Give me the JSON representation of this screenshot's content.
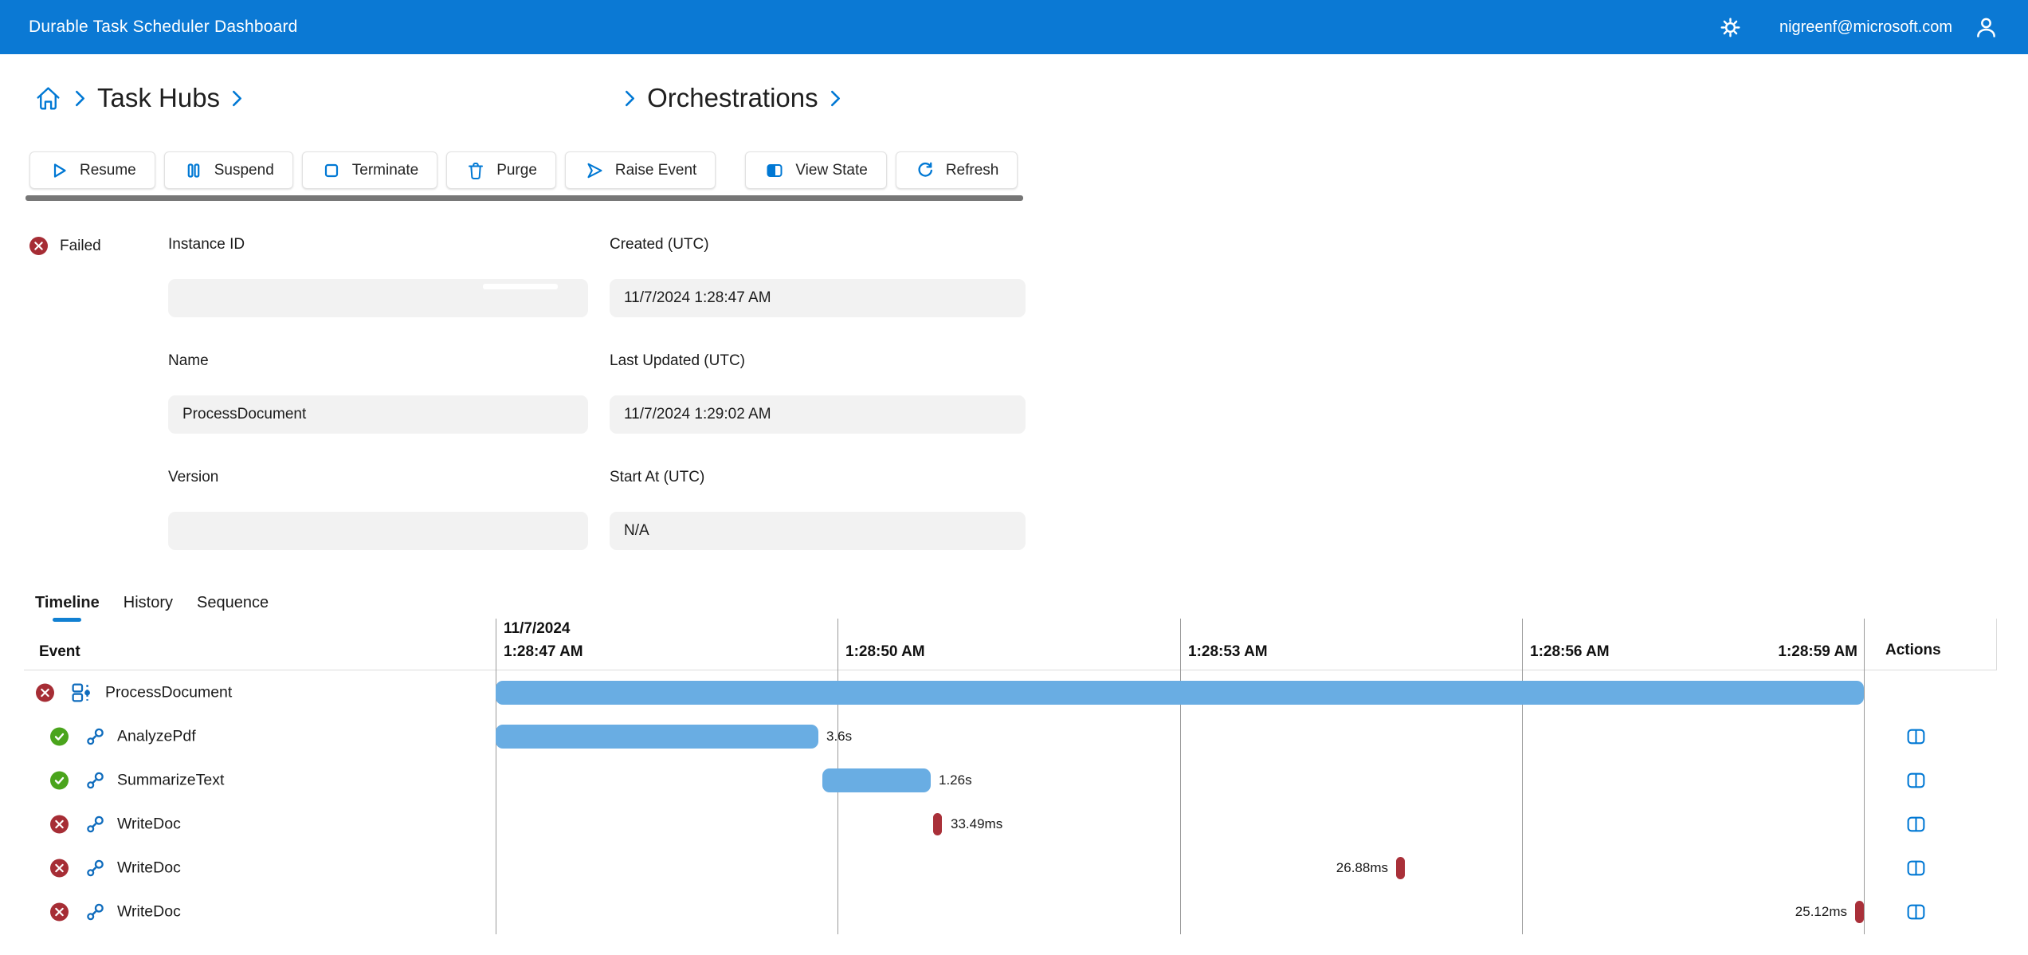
{
  "topbar": {
    "title": "Durable Task Scheduler Dashboard",
    "user_email": "nigreenf@microsoft.com"
  },
  "breadcrumb": {
    "task_hubs_label": "Task Hubs",
    "orchestrations_label": "Orchestrations"
  },
  "toolbar": {
    "buttons": [
      {
        "label": "Resume",
        "icon": "resume-play-icon"
      },
      {
        "label": "Suspend",
        "icon": "suspend-pause-icon"
      },
      {
        "label": "Terminate",
        "icon": "terminate-stop-icon"
      },
      {
        "label": "Purge",
        "icon": "purge-trash-icon"
      },
      {
        "label": "Raise Event",
        "icon": "raise-event-send-icon"
      },
      {
        "label": "View State",
        "icon": "view-state-split-icon",
        "group_gap": true
      },
      {
        "label": "Refresh",
        "icon": "refresh-icon"
      }
    ]
  },
  "details": {
    "status_label": "Failed",
    "status": "failed",
    "fields": [
      {
        "label": "Instance ID",
        "value": "",
        "redacted": true
      },
      {
        "label": "Created (UTC)",
        "value": "11/7/2024 1:28:47 AM"
      },
      {
        "label": "Name",
        "value": "ProcessDocument"
      },
      {
        "label": "Last Updated (UTC)",
        "value": "11/7/2024 1:29:02 AM"
      },
      {
        "label": "Version",
        "value": ""
      },
      {
        "label": "Start At (UTC)",
        "value": "N/A"
      }
    ]
  },
  "tabs": [
    {
      "label": "Timeline",
      "active": true
    },
    {
      "label": "History",
      "active": false
    },
    {
      "label": "Sequence",
      "active": false
    }
  ],
  "timeline": {
    "event_header": "Event",
    "actions_header": "Actions",
    "axis_ticks": [
      {
        "date": "11/7/2024",
        "time": "1:28:47 AM",
        "align": "left"
      },
      {
        "time": "1:28:50 AM",
        "align": "left"
      },
      {
        "time": "1:28:53 AM",
        "align": "left"
      },
      {
        "time": "1:28:56 AM",
        "align": "left"
      },
      {
        "time": "1:28:59 AM",
        "align": "right"
      }
    ],
    "rows": [
      {
        "name": "ProcessDocument",
        "status": "failed",
        "kind": "orchestration",
        "duration": "",
        "duration_side": "none",
        "bar": {
          "color": "blue",
          "start_pct": 0,
          "width_pct": 100
        },
        "has_action": false
      },
      {
        "name": "AnalyzePdf",
        "status": "succeeded",
        "kind": "activity",
        "duration": "3.6s",
        "duration_side": "right",
        "bar": {
          "color": "blue",
          "start_pct": 0,
          "width_pct": 23.6
        },
        "has_action": true
      },
      {
        "name": "SummarizeText",
        "status": "succeeded",
        "kind": "activity",
        "duration": "1.26s",
        "duration_side": "right",
        "bar": {
          "color": "blue",
          "start_pct": 23.9,
          "width_pct": 7.9
        },
        "has_action": true
      },
      {
        "name": "WriteDoc",
        "status": "failed",
        "kind": "activity",
        "duration": "33.49ms",
        "duration_side": "right",
        "bar": {
          "color": "red",
          "start_pct": 32.0,
          "width_pct": 0.65
        },
        "has_action": true
      },
      {
        "name": "WriteDoc",
        "status": "failed",
        "kind": "activity",
        "duration": "26.88ms",
        "duration_side": "left",
        "bar": {
          "color": "red",
          "start_pct": 65.8,
          "width_pct": 0.65
        },
        "has_action": true
      },
      {
        "name": "WriteDoc",
        "status": "failed",
        "kind": "activity",
        "duration": "25.12ms",
        "duration_side": "left",
        "bar": {
          "color": "red",
          "start_pct": 99.35,
          "width_pct": 0.65
        },
        "has_action": true
      }
    ]
  },
  "colors": {
    "topbar_blue": "#0b79d4",
    "accent_blue": "#0078d4",
    "icon_blue": "#0f6cbd",
    "bar_blue": "#69ade3",
    "bar_red": "#a93039",
    "badge_red": "#a62d35",
    "badge_green": "#4aa41c",
    "gridline_gray": "#9a9a9a"
  }
}
